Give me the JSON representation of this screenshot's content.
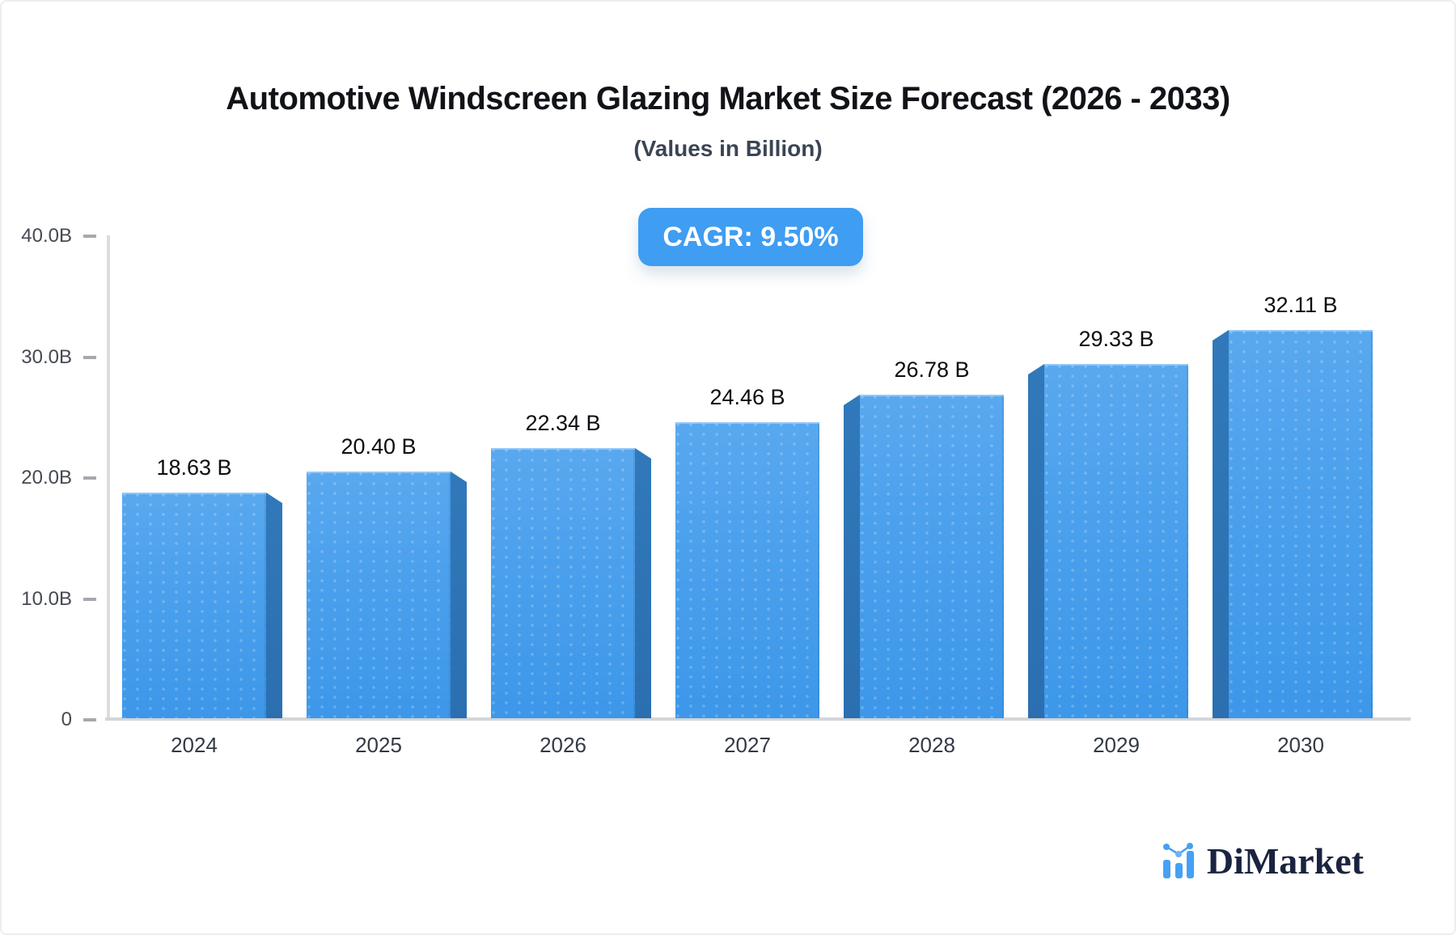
{
  "title": "Automotive Windscreen Glazing Market Size Forecast (2026 - 2033)",
  "subtitle": "(Values in Billion)",
  "badge": {
    "label": "CAGR: 9.50%"
  },
  "brand": {
    "name": "DiMarket",
    "icon": "mini-bar-line-chart-icon"
  },
  "colors": {
    "bar_front_top": "#59a8ef",
    "bar_front_bottom": "#3d97e9",
    "bar_side": "#2e76b6",
    "badge_bg": "#3f9df2",
    "badge_text": "#ffffff",
    "axis_line": "#dadde0",
    "baseline": "#d2d6da",
    "tick_dash": "#a5a9ae",
    "title_text": "#111318",
    "subtitle_text": "#3b4454",
    "y_label_text": "#454a52",
    "x_label_text": "#333a45",
    "value_label_text": "#0b0d10",
    "brand_navy": "#1a2440",
    "brand_blue": "#46a0f4"
  },
  "chart_data": {
    "type": "bar",
    "title": "Automotive Windscreen Glazing Market Size Forecast (2026 - 2033)",
    "subtitle": "(Values in Billion)",
    "unit": "Billion",
    "cagr": "9.50%",
    "categories": [
      "2024",
      "2025",
      "2026",
      "2027",
      "2028",
      "2029",
      "2030"
    ],
    "values": [
      18.63,
      20.4,
      22.34,
      24.46,
      26.78,
      29.33,
      32.11
    ],
    "value_labels": [
      "18.63 B",
      "20.40 B",
      "22.34 B",
      "24.46 B",
      "26.78 B",
      "29.33 B",
      "32.11 B"
    ],
    "ylim": [
      0,
      40
    ],
    "ytick_values": [
      0,
      10,
      20,
      30,
      40
    ],
    "ytick_labels": [
      "0",
      "10.0B",
      "20.0B",
      "30.0B",
      "40.0B"
    ],
    "grid": false,
    "legend": false,
    "bar_style": "3d"
  }
}
